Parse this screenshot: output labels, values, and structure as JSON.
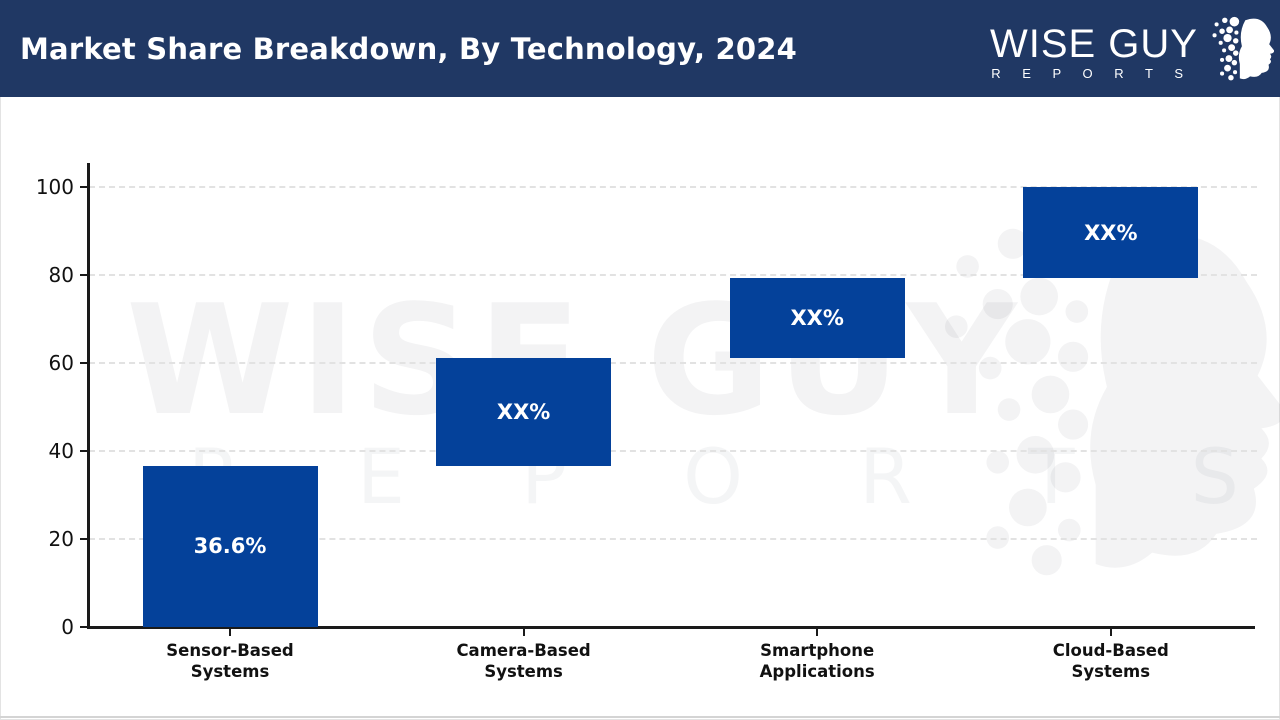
{
  "header": {
    "title": "Market Share Breakdown, By Technology, 2024",
    "logo": {
      "name": "WISE GUY",
      "sub": "R E P O R T S"
    }
  },
  "watermark": {
    "line1": "WISE GUY",
    "line2": "R E P O R T S"
  },
  "chart_data": {
    "type": "bar",
    "variant": "floating-waterfall-percent",
    "title": "Market Share Breakdown, By Technology, 2024",
    "categories": [
      "Sensor-Based\nSystems",
      "Camera-Based\nSystems",
      "Smartphone\nApplications",
      "Cloud-Based\nSystems"
    ],
    "bars": [
      {
        "category": "Sensor-Based Systems",
        "start": 0,
        "end": 36.6,
        "label": "36.6%"
      },
      {
        "category": "Camera-Based Systems",
        "start": 36.6,
        "end": 61.1,
        "label": "XX%"
      },
      {
        "category": "Smartphone Applications",
        "start": 61.1,
        "end": 79.3,
        "label": "XX%"
      },
      {
        "category": "Cloud-Based Systems",
        "start": 79.3,
        "end": 100,
        "label": "XX%"
      }
    ],
    "xlabel": "",
    "ylabel": "",
    "yticks": [
      0,
      20,
      40,
      60,
      80,
      100
    ],
    "ylim": [
      0,
      105.5
    ],
    "grid": {
      "axis": "y",
      "style": "dashed",
      "color": "#e2e2e2",
      "skip_zero": true
    },
    "legend": "none",
    "bar_color": "#04419a",
    "bar_label_color": "#ffffff"
  },
  "colors": {
    "header_bg": "#203864",
    "bar": "#04419a",
    "axis": "#1a1a1a",
    "grid": "#e2e2e2",
    "text": "#111111",
    "watermark": "#f0f1f3",
    "bottom_edge": "#d4d4d4"
  }
}
